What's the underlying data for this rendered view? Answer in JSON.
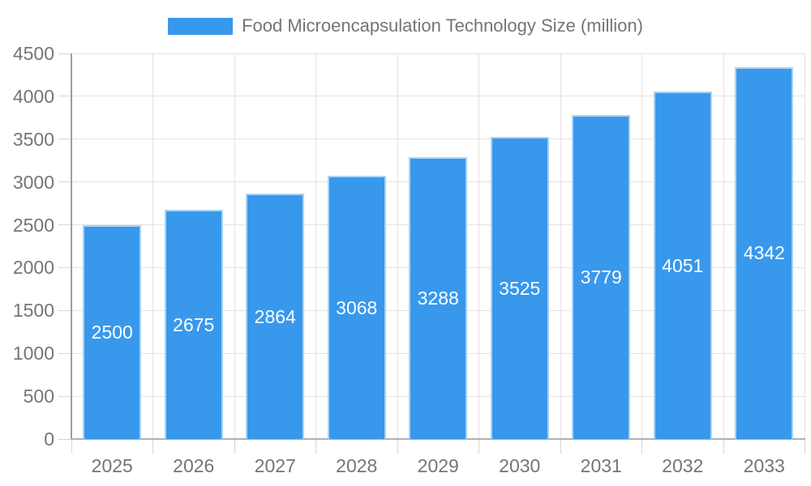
{
  "legend": {
    "label": "Food Microencapsulation Technology Size (million)"
  },
  "colors": {
    "bar": "#3898ec",
    "bar_border": "#a9d3f5",
    "grid": "#e3e3e3",
    "tick": "#d6d6d6",
    "axis_y": "#9e9e9e",
    "axis_x": "#b0b0b0",
    "text": "#757575",
    "value_text": "#ffffff",
    "background": "#ffffff"
  },
  "chart_data": {
    "type": "bar",
    "title": "Food Microencapsulation Technology Size (million)",
    "categories": [
      "2025",
      "2026",
      "2027",
      "2028",
      "2029",
      "2030",
      "2031",
      "2032",
      "2033"
    ],
    "values": [
      2500,
      2675,
      2864,
      3068,
      3288,
      3525,
      3779,
      4051,
      4342
    ],
    "xlabel": "",
    "ylabel": "",
    "ylim": [
      0,
      4500
    ],
    "ytick_step": 500,
    "yticks": [
      0,
      500,
      1000,
      1500,
      2000,
      2500,
      3000,
      3500,
      4000,
      4500
    ],
    "grid": true,
    "legend_position": "top",
    "value_labels": "inside-center"
  }
}
